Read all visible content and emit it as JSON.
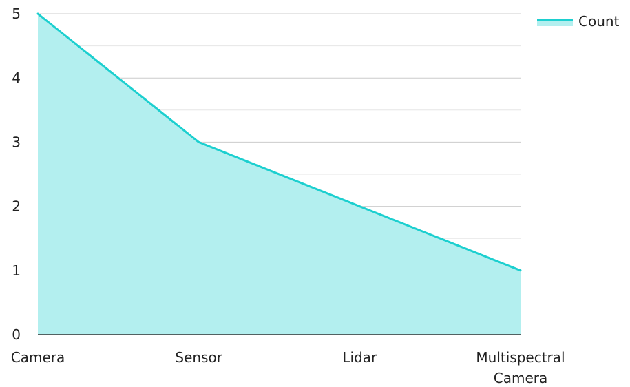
{
  "chart_data": {
    "type": "area",
    "categories": [
      "Camera",
      "Sensor",
      "Lidar",
      "Multispectral Camera"
    ],
    "series": [
      {
        "name": "Count",
        "values": [
          5,
          3,
          2,
          1
        ],
        "color": "#1ccfcf",
        "fill": "#b3efef"
      }
    ],
    "ylim": [
      0,
      5
    ],
    "yticks": [
      "0",
      "1",
      "2",
      "3",
      "4",
      "5"
    ],
    "grid": true,
    "legend_position": "top-right",
    "colors": {
      "grid_major": "#cccccc",
      "grid_minor": "#e6e6e6",
      "axis": "#333333"
    }
  }
}
